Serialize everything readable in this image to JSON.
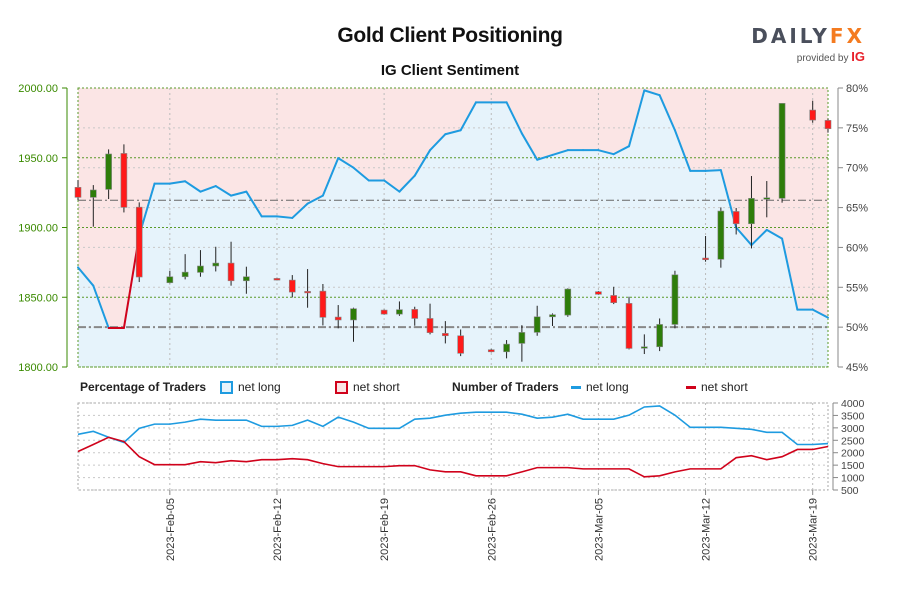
{
  "header": {
    "title": "Gold Client Positioning",
    "subtitle": "IG Client Sentiment",
    "logo_main": "DAILY",
    "logo_fx": "FX",
    "logo_provided": "provided by",
    "logo_ig": "IG"
  },
  "legend": {
    "pct_title": "Percentage of Traders",
    "pct_long": "net long",
    "pct_short": "net short",
    "num_title": "Number of Traders",
    "num_long": "net long",
    "num_short": "net short"
  },
  "colors": {
    "long": "#1e9be0",
    "short": "#d0021b",
    "bull": "#2e7d0a",
    "bear": "#ff1a1a",
    "price_axis": "#3a8a00",
    "long_fill": "#e6f3fb",
    "short_fill": "#fbe5e5"
  },
  "chart_data": [
    {
      "type": "candlestick+area",
      "title": "IG Client Sentiment",
      "price_axis": {
        "side": "left",
        "ticks": [
          "1800.00",
          "1850.00",
          "1900.00",
          "1950.00",
          "2000.00"
        ],
        "ylim": [
          1800,
          2000
        ]
      },
      "sentiment_axis": {
        "side": "right",
        "ticks": [
          "45%",
          "50%",
          "55%",
          "60%",
          "65%",
          "70%",
          "75%",
          "80%"
        ],
        "ylim": [
          45,
          80
        ]
      },
      "x_ticks": [
        {
          "date": "2023-02-05",
          "label": "2023-Feb-05"
        },
        {
          "date": "2023-02-12",
          "label": "2023-Feb-12"
        },
        {
          "date": "2023-02-19",
          "label": "2023-Feb-19"
        },
        {
          "date": "2023-02-26",
          "label": "2023-Feb-26"
        },
        {
          "date": "2023-03-05",
          "label": "2023-Mar-05"
        },
        {
          "date": "2023-03-12",
          "label": "2023-Mar-12"
        },
        {
          "date": "2023-03-19",
          "label": "2023-Mar-19"
        }
      ],
      "dates": [
        "2023-01-30",
        "2023-01-31",
        "2023-02-01",
        "2023-02-02",
        "2023-02-03",
        "2023-02-04",
        "2023-02-05",
        "2023-02-06",
        "2023-02-07",
        "2023-02-08",
        "2023-02-09",
        "2023-02-10",
        "2023-02-11",
        "2023-02-12",
        "2023-02-13",
        "2023-02-14",
        "2023-02-15",
        "2023-02-16",
        "2023-02-17",
        "2023-02-18",
        "2023-02-19",
        "2023-02-20",
        "2023-02-21",
        "2023-02-22",
        "2023-02-23",
        "2023-02-24",
        "2023-02-25",
        "2023-02-26",
        "2023-02-27",
        "2023-02-28",
        "2023-03-01",
        "2023-03-02",
        "2023-03-03",
        "2023-03-04",
        "2023-03-05",
        "2023-03-06",
        "2023-03-07",
        "2023-03-08",
        "2023-03-09",
        "2023-03-10",
        "2023-03-11",
        "2023-03-12",
        "2023-03-13",
        "2023-03-14",
        "2023-03-15",
        "2023-03-16",
        "2023-03-17",
        "2023-03-18",
        "2023-03-19",
        "2023-03-20"
      ],
      "net_long_pct": [
        57.5,
        55.2,
        49.9,
        49.9,
        61.5,
        68.0,
        68.0,
        68.3,
        67.0,
        67.7,
        66.5,
        67.0,
        63.9,
        63.9,
        63.7,
        65.5,
        66.5,
        71.2,
        70.0,
        68.4,
        68.4,
        67.0,
        69.0,
        72.2,
        74.2,
        74.7,
        78.2,
        78.2,
        78.2,
        74.3,
        71.0,
        71.6,
        72.2,
        72.2,
        72.2,
        71.7,
        72.7,
        79.7,
        79.1,
        74.7,
        69.6,
        69.6,
        69.7,
        62.5,
        60.3,
        62.2,
        61.1,
        52.2,
        52.2,
        51.2
      ],
      "reference_lines": [
        {
          "axis": "sentiment",
          "value": 50
        },
        {
          "axis": "price",
          "value": 1919.5
        }
      ],
      "candles_ohlc": [
        [
          "2023-01-30",
          1928.8,
          1934.0,
          1919.7,
          1921.6
        ],
        [
          "2023-01-31",
          1921.6,
          1930.4,
          1900.6,
          1926.9
        ],
        [
          "2023-02-01",
          1927.3,
          1956.0,
          1920.4,
          1952.7
        ],
        [
          "2023-02-02",
          1953.1,
          1959.6,
          1910.8,
          1914.4
        ],
        [
          "2023-02-03",
          1914.6,
          1918.0,
          1860.9,
          1864.5
        ],
        [
          "2023-02-05",
          1860.4,
          1869.0,
          1860.0,
          1864.7
        ],
        [
          "2023-02-06",
          1864.7,
          1880.9,
          1862.8,
          1868.0
        ],
        [
          "2023-02-07",
          1867.8,
          1883.8,
          1864.7,
          1872.4
        ],
        [
          "2023-02-08",
          1872.4,
          1886.2,
          1868.5,
          1874.5
        ],
        [
          "2023-02-09",
          1874.5,
          1889.8,
          1858.3,
          1861.8
        ],
        [
          "2023-02-10",
          1861.8,
          1871.9,
          1852.5,
          1864.7
        ],
        [
          "2023-02-12",
          1863.5,
          1864.0,
          1862.0,
          1862.3
        ],
        [
          "2023-02-13",
          1862.3,
          1865.9,
          1849.9,
          1853.7
        ],
        [
          "2023-02-14",
          1854.2,
          1870.2,
          1842.5,
          1854.0
        ],
        [
          "2023-02-15",
          1854.4,
          1859.5,
          1829.8,
          1835.6
        ],
        [
          "2023-02-16",
          1835.8,
          1844.4,
          1827.7,
          1833.7
        ],
        [
          "2023-02-17",
          1833.7,
          1842.5,
          1818.1,
          1841.8
        ],
        [
          "2023-02-19",
          1840.8,
          1841.2,
          1837.5,
          1837.9
        ],
        [
          "2023-02-20",
          1837.9,
          1847.0,
          1836.7,
          1841.1
        ],
        [
          "2023-02-21",
          1841.3,
          1843.2,
          1829.6,
          1834.8
        ],
        [
          "2023-02-22",
          1834.8,
          1845.4,
          1823.4,
          1824.6
        ],
        [
          "2023-02-23",
          1824.1,
          1832.9,
          1816.9,
          1822.4
        ],
        [
          "2023-02-24",
          1822.4,
          1826.9,
          1807.8,
          1809.8
        ],
        [
          "2023-02-26",
          1812.4,
          1813.0,
          1810.5,
          1810.9
        ],
        [
          "2023-02-27",
          1810.9,
          1819.3,
          1806.2,
          1816.4
        ],
        [
          "2023-02-28",
          1816.9,
          1830.0,
          1803.8,
          1824.8
        ],
        [
          "2023-03-01",
          1824.8,
          1843.9,
          1822.4,
          1836.0
        ],
        [
          "2023-03-02",
          1836.0,
          1838.4,
          1829.4,
          1837.5
        ],
        [
          "2023-03-03",
          1837.2,
          1856.4,
          1836.0,
          1855.9
        ],
        [
          "2023-03-05",
          1854.0,
          1854.5,
          1851.8,
          1852.1
        ],
        [
          "2023-03-06",
          1851.3,
          1857.5,
          1845.1,
          1846.1
        ],
        [
          "2023-03-07",
          1845.6,
          1850.4,
          1812.6,
          1813.3
        ],
        [
          "2023-03-08",
          1813.8,
          1823.4,
          1809.3,
          1814.5
        ],
        [
          "2023-03-09",
          1814.5,
          1834.8,
          1811.4,
          1830.5
        ],
        [
          "2023-03-10",
          1830.5,
          1869.0,
          1827.7,
          1866.1
        ],
        [
          "2023-03-12",
          1878.1,
          1893.9,
          1875.5,
          1876.9
        ],
        [
          "2023-03-13",
          1877.2,
          1914.4,
          1871.2,
          1911.8
        ],
        [
          "2023-03-14",
          1911.5,
          1914.0,
          1895.0,
          1902.7
        ],
        [
          "2023-03-15",
          1902.7,
          1936.9,
          1885.0,
          1920.9
        ],
        [
          "2023-03-16",
          1921.0,
          1933.3,
          1907.3,
          1921.3
        ],
        [
          "2023-03-17",
          1920.9,
          1989.0,
          1917.8,
          1989.0
        ],
        [
          "2023-03-19",
          1984.2,
          1990.9,
          1975.1,
          1977.0
        ],
        [
          "2023-03-20",
          1976.8,
          1978.0,
          1968.0,
          1970.8
        ]
      ]
    },
    {
      "type": "line",
      "title": "Number of Traders",
      "y_axis": {
        "side": "right",
        "ticks": [
          "500",
          "1000",
          "1500",
          "2000",
          "2500",
          "3000",
          "3500",
          "4000"
        ],
        "ylim": [
          500,
          4000
        ]
      },
      "series": [
        {
          "name": "net long",
          "values": [
            2740,
            2860,
            2620,
            2410,
            2980,
            3150,
            3150,
            3230,
            3350,
            3310,
            3310,
            3310,
            3060,
            3060,
            3100,
            3310,
            3060,
            3430,
            3230,
            2980,
            2980,
            2980,
            3350,
            3390,
            3510,
            3590,
            3630,
            3630,
            3630,
            3550,
            3390,
            3430,
            3550,
            3350,
            3350,
            3350,
            3510,
            3840,
            3880,
            3510,
            3020,
            3020,
            3020,
            2980,
            2940,
            2820,
            2820,
            2330,
            2330,
            2370
          ]
        },
        {
          "name": "net short",
          "values": [
            2050,
            2330,
            2620,
            2450,
            1840,
            1520,
            1520,
            1520,
            1640,
            1600,
            1680,
            1640,
            1720,
            1720,
            1760,
            1720,
            1560,
            1440,
            1440,
            1440,
            1440,
            1480,
            1480,
            1310,
            1230,
            1230,
            1070,
            1070,
            1070,
            1230,
            1400,
            1400,
            1400,
            1350,
            1350,
            1350,
            1350,
            1030,
            1070,
            1230,
            1350,
            1350,
            1350,
            1800,
            1880,
            1720,
            1840,
            2130,
            2130,
            2250
          ]
        }
      ]
    }
  ]
}
